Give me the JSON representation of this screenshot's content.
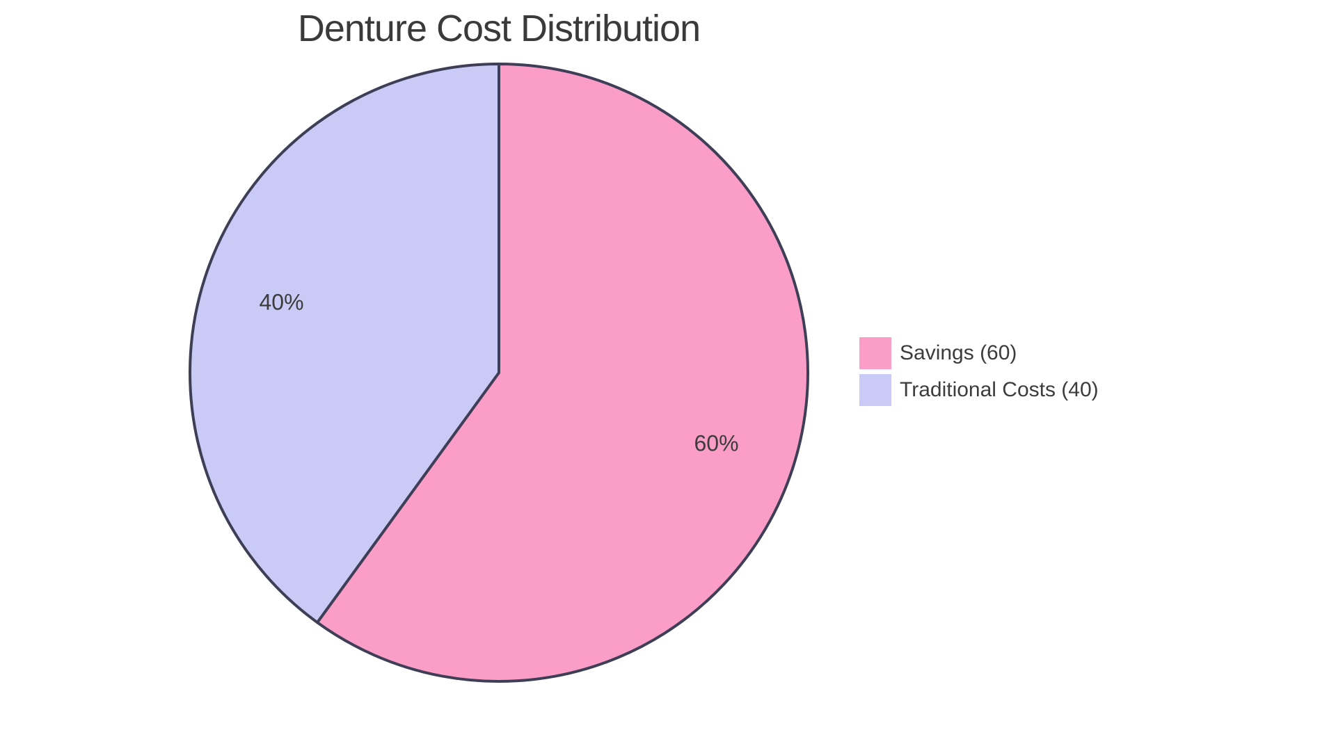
{
  "page": {
    "background_color": "#FFFFFF"
  },
  "chart_data": {
    "type": "pie",
    "title": "Denture Cost Distribution",
    "title_color": "#3A3A3A",
    "start_angle": "top",
    "direction": "clockwise",
    "stroke_color": "#3E3E56",
    "stroke_width": 4,
    "percent_label_color": "#3C3C3C",
    "legend_position": "right",
    "slices": [
      {
        "label": "Savings",
        "value": 60,
        "percent_label": "60%",
        "color": "#FA9EC8",
        "legend_label": "Savings (60)"
      },
      {
        "label": "Traditional Costs",
        "value": 40,
        "percent_label": "40%",
        "color": "#CACAF6",
        "legend_label": "Traditional Costs (40)"
      }
    ]
  }
}
